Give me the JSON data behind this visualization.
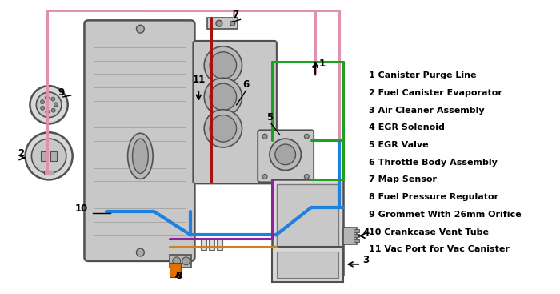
{
  "legend_items": [
    "1 Canister Purge Line",
    "2 Fuel Canister Evaporator",
    "3 Air Cleaner Assembly",
    "4 EGR Solenoid",
    "5 EGR Valve",
    "6 Throttle Body Assembly",
    "7 Map Sensor",
    "8 Fuel Pressure Regulator",
    "9 Grommet With 26mm Orifice",
    "10 Crankcase Vent Tube",
    "11 Vac Port for Vac Canister"
  ],
  "pink": "#e090b0",
  "blue": "#2080e0",
  "green": "#20a020",
  "dkred": "#aa1010",
  "orange": "#d08020",
  "purple": "#9020a0",
  "gray1": "#c8c8c8",
  "gray2": "#b8b8b8",
  "gray3": "#d8d8d8",
  "edge": "#505050",
  "white": "#ffffff"
}
